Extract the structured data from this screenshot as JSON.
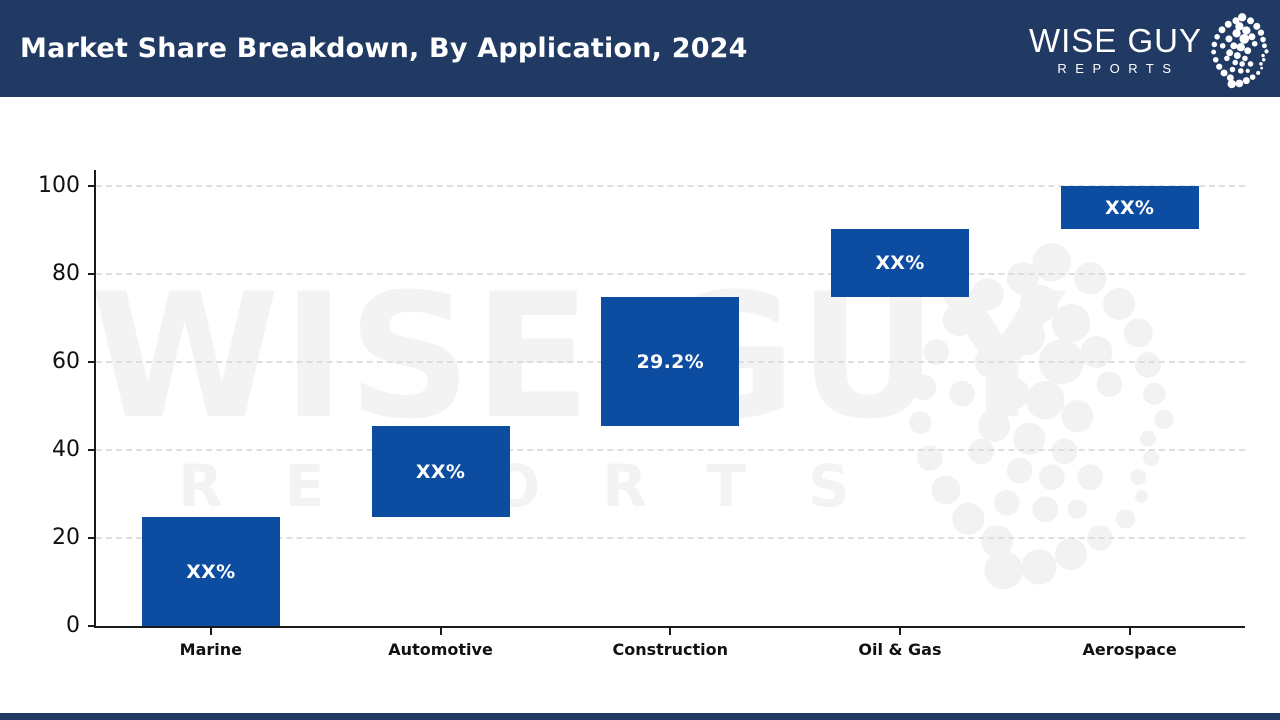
{
  "header": {
    "title": "Market Share Breakdown, By Application, 2024",
    "logo": {
      "line1": "WISE GUY",
      "line2": "REPORTS"
    }
  },
  "watermark": {
    "line1": "WISE GUY",
    "line2": "REPORTS"
  },
  "colors": {
    "header_bg": "#203a64",
    "footer_bg": "#203a64",
    "bar": "#0c4da2",
    "grid": "#dedede",
    "axis": "#1a1a1a",
    "bar_label": "#ffffff",
    "watermark": "#f3f3f3"
  },
  "chart_data": {
    "type": "bar",
    "subtype": "floating-waterfall",
    "title": "Market Share Breakdown, By Application, 2024",
    "categories": [
      "Marine",
      "Automotive",
      "Construction",
      "Oil & Gas",
      "Aerospace"
    ],
    "starts": [
      0,
      24.7,
      45.5,
      74.7,
      90.2
    ],
    "values": [
      24.7,
      20.8,
      29.2,
      15.5,
      9.8
    ],
    "bar_labels": [
      "XX%",
      "XX%",
      "29.2%",
      "XX%",
      "XX%"
    ],
    "xlabel": "",
    "ylabel": "",
    "ylim": [
      0,
      100
    ],
    "yticks": [
      0,
      20,
      40,
      60,
      80,
      100
    ],
    "grid": "horizontal-dashed",
    "legend": null
  }
}
